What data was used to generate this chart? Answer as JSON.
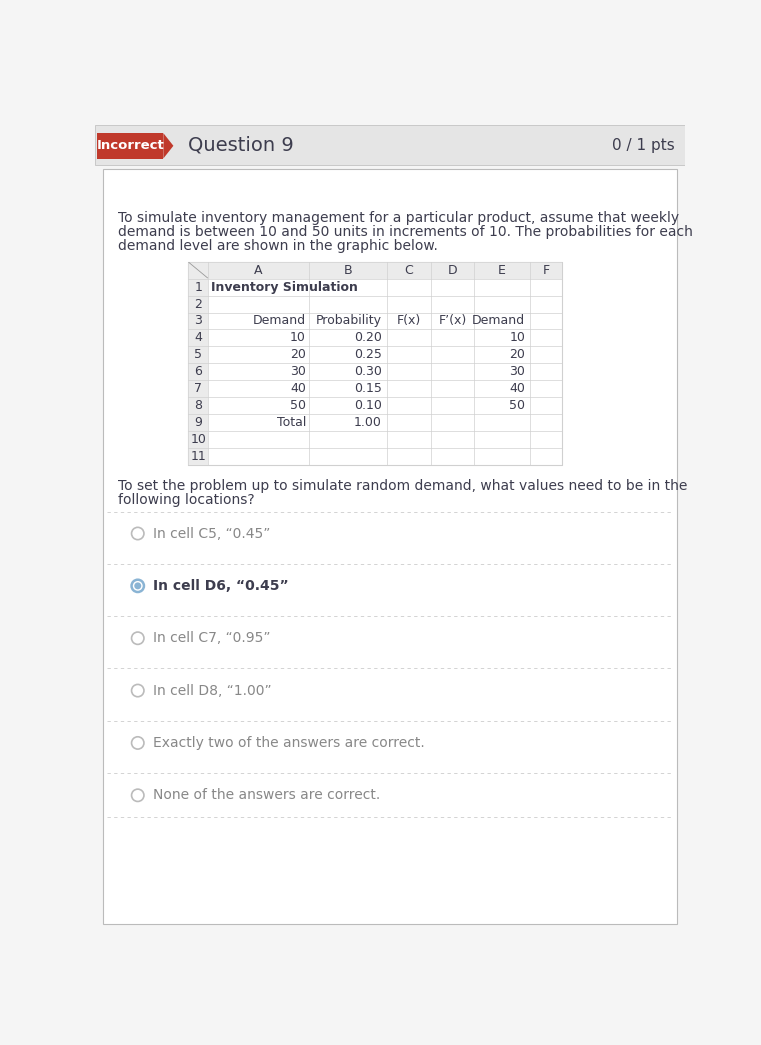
{
  "header_bg": "#c0392b",
  "header_text_color": "#ffffff",
  "header_label": "Incorrect",
  "question_title": "Question 9",
  "score": "0 / 1 pts",
  "title_bar_bg": "#e5e5e5",
  "body_bg": "#f5f5f5",
  "content_bg": "#ffffff",
  "border_color": "#cccccc",
  "intro_text_line1": "To simulate inventory management for a particular product, assume that weekly",
  "intro_text_line2": "demand is between 10 and 50 units in increments of 10. The probabilities for each",
  "intro_text_line3": "demand level are shown in the graphic below.",
  "table_header_row": [
    "",
    "A",
    "B",
    "C",
    "D",
    "E",
    "F"
  ],
  "table_rows": [
    [
      "1",
      "Inventory Simulation",
      "",
      "",
      "",
      "",
      ""
    ],
    [
      "2",
      "",
      "",
      "",
      "",
      "",
      ""
    ],
    [
      "3",
      "Demand",
      "Probability",
      "F(x)",
      "F’(x)",
      "Demand",
      ""
    ],
    [
      "4",
      "10",
      "0.20",
      "",
      "",
      "10",
      ""
    ],
    [
      "5",
      "20",
      "0.25",
      "",
      "",
      "20",
      ""
    ],
    [
      "6",
      "30",
      "0.30",
      "",
      "",
      "30",
      ""
    ],
    [
      "7",
      "40",
      "0.15",
      "",
      "",
      "40",
      ""
    ],
    [
      "8",
      "50",
      "0.10",
      "",
      "",
      "50",
      ""
    ],
    [
      "9",
      "Total",
      "1.00",
      "",
      "",
      "",
      ""
    ],
    [
      "10",
      "",
      "",
      "",
      "",
      "",
      ""
    ],
    [
      "11",
      "",
      "",
      "",
      "",
      "",
      ""
    ]
  ],
  "question_text_line1": "To set the problem up to simulate random demand, what values need to be in the",
  "question_text_line2": "following locations?",
  "options": [
    {
      "text": "In cell C5, “0.45”",
      "selected": false
    },
    {
      "text": "In cell D6, “0.45”",
      "selected": true
    },
    {
      "text": "In cell C7, “0.95”",
      "selected": false
    },
    {
      "text": "In cell D8, “1.00”",
      "selected": false
    },
    {
      "text": "Exactly two of the answers are correct.",
      "selected": false
    },
    {
      "text": "None of the answers are correct.",
      "selected": false
    }
  ],
  "text_color_dark": "#3d3d4e",
  "text_color_medium": "#888888",
  "radio_selected_outer": "#8ab4d4",
  "radio_selected_inner": "#8ab4d4",
  "radio_unselected_color": "#bbbbbb",
  "table_line_color": "#d0d0d0",
  "table_header_col_bg": "#ebebeb",
  "sep_line_color": "#cccccc"
}
